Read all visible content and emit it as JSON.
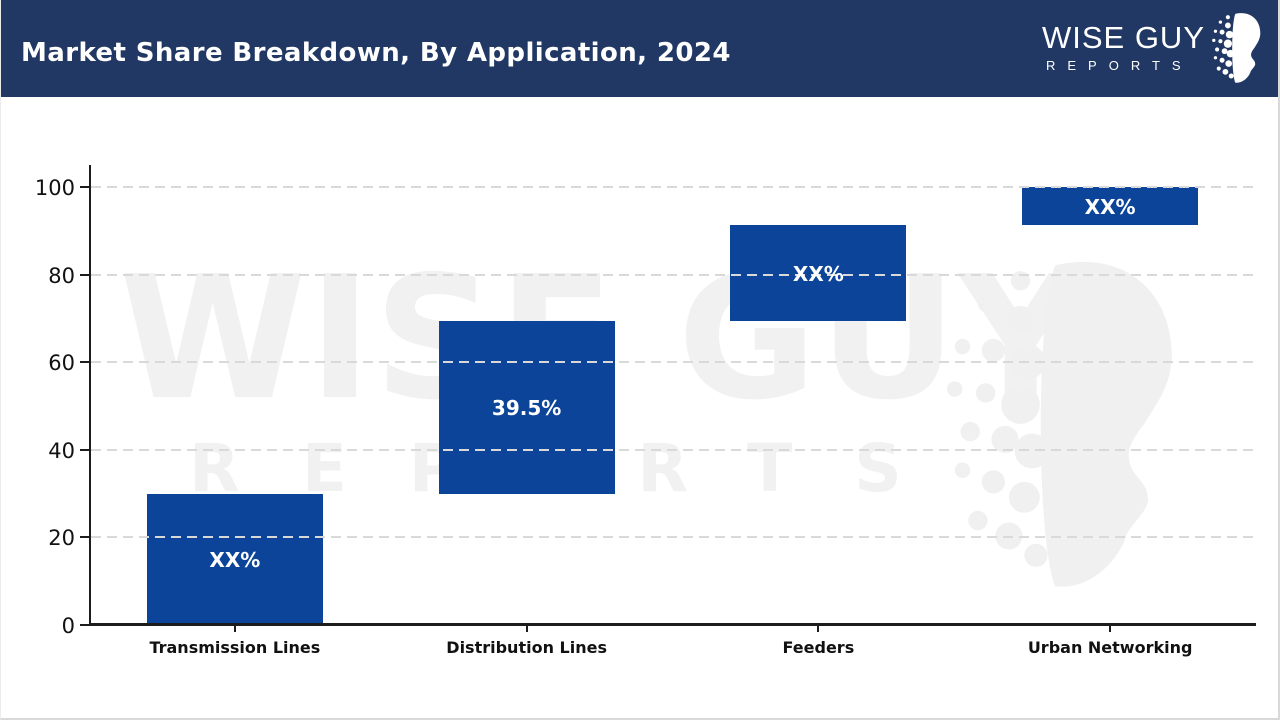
{
  "page": {
    "background": "#ffffff",
    "edge_line_color": "#d9d9d9"
  },
  "header": {
    "background": "#213864",
    "title": "Market Share Breakdown, By Application, 2024",
    "logo": {
      "line1": "WISE GUY",
      "line2": "REPORTS"
    }
  },
  "watermark": {
    "line1": "WISE GUY",
    "line2": "REPORTS",
    "color": "#f1f1f2"
  },
  "chart_data": {
    "type": "bar",
    "subtype": "waterfall-floating-bars",
    "title": "Market Share Breakdown, By Application, 2024",
    "categories": [
      "Transmission Lines",
      "Distribution Lines",
      "Feeders",
      "Urban Networking"
    ],
    "segments": [
      {
        "category": "Transmission Lines",
        "start": 0,
        "end": 30,
        "label": "XX%"
      },
      {
        "category": "Distribution Lines",
        "start": 30,
        "end": 69.5,
        "label": "39.5%"
      },
      {
        "category": "Feeders",
        "start": 69.5,
        "end": 91.5,
        "label": "XX%"
      },
      {
        "category": "Urban Networking",
        "start": 91.5,
        "end": 100,
        "label": "XX%"
      }
    ],
    "xlabel": "",
    "ylabel": "",
    "ylim": [
      0,
      100
    ],
    "yticks": [
      0,
      20,
      40,
      60,
      80,
      100
    ],
    "grid": "horizontal-dashed",
    "legend": "none",
    "bar_color": "#0b4499",
    "bar_label_color": "#ffffff",
    "axis_color": "#1c1c1c",
    "grid_color": "#d9d9d9",
    "tick_label_color": "#111111"
  }
}
